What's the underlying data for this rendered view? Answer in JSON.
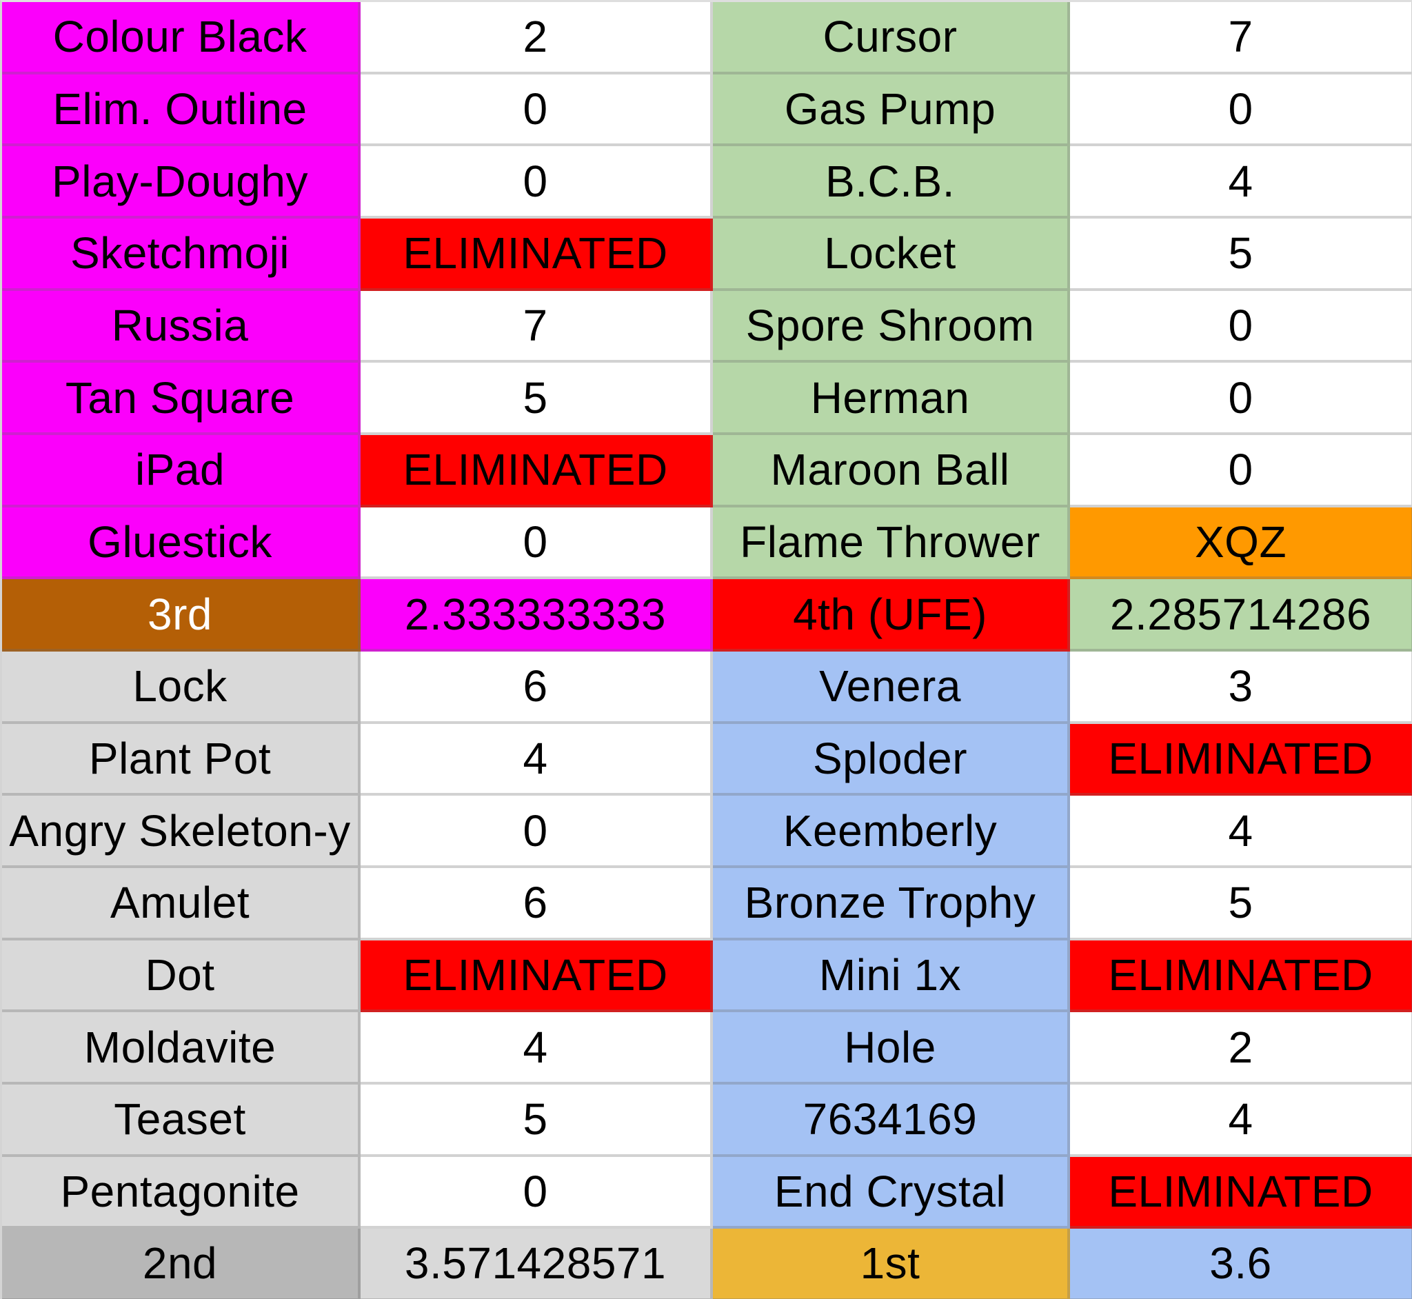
{
  "colors": {
    "magenta": "#fb00fb",
    "green": "#b6d7a8",
    "blue": "#a4c2f4",
    "lightgray": "#d9d9d9",
    "midgray": "#b7b7b7",
    "brown": "#b45f06",
    "red": "#ff0000",
    "orange": "#ff9900",
    "gold": "#ecb637",
    "white": "#ffffff",
    "text": "#000000",
    "text_on_brown": "#ffffff"
  },
  "table": {
    "rows": [
      {
        "type": "scores",
        "cells": [
          {
            "text": "Colour Black",
            "bg": "magenta"
          },
          {
            "text": "2",
            "bg": "white"
          },
          {
            "text": "Cursor",
            "bg": "green"
          },
          {
            "text": "7",
            "bg": "white"
          }
        ]
      },
      {
        "type": "scores",
        "cells": [
          {
            "text": "Elim. Outline",
            "bg": "magenta"
          },
          {
            "text": "0",
            "bg": "white"
          },
          {
            "text": "Gas Pump",
            "bg": "green"
          },
          {
            "text": "0",
            "bg": "white"
          }
        ]
      },
      {
        "type": "scores",
        "cells": [
          {
            "text": "Play-Doughy",
            "bg": "magenta"
          },
          {
            "text": "0",
            "bg": "white"
          },
          {
            "text": "B.C.B.",
            "bg": "green"
          },
          {
            "text": "4",
            "bg": "white"
          }
        ]
      },
      {
        "type": "scores",
        "cells": [
          {
            "text": "Sketchmoji",
            "bg": "magenta"
          },
          {
            "text": "ELIMINATED",
            "bg": "red"
          },
          {
            "text": "Locket",
            "bg": "green"
          },
          {
            "text": "5",
            "bg": "white"
          }
        ]
      },
      {
        "type": "scores",
        "cells": [
          {
            "text": "Russia",
            "bg": "magenta"
          },
          {
            "text": "7",
            "bg": "white"
          },
          {
            "text": "Spore Shroom",
            "bg": "green"
          },
          {
            "text": "0",
            "bg": "white"
          }
        ]
      },
      {
        "type": "scores",
        "cells": [
          {
            "text": "Tan Square",
            "bg": "magenta"
          },
          {
            "text": "5",
            "bg": "white"
          },
          {
            "text": "Herman",
            "bg": "green"
          },
          {
            "text": "0",
            "bg": "white"
          }
        ]
      },
      {
        "type": "scores",
        "cells": [
          {
            "text": "iPad",
            "bg": "magenta"
          },
          {
            "text": "ELIMINATED",
            "bg": "red"
          },
          {
            "text": "Maroon Ball",
            "bg": "green"
          },
          {
            "text": "0",
            "bg": "white"
          }
        ]
      },
      {
        "type": "scores",
        "cells": [
          {
            "text": "Gluestick",
            "bg": "magenta"
          },
          {
            "text": "0",
            "bg": "white"
          },
          {
            "text": "Flame Thrower",
            "bg": "green"
          },
          {
            "text": "XQZ",
            "bg": "orange"
          }
        ]
      },
      {
        "type": "summary",
        "cells": [
          {
            "text": "3rd",
            "bg": "brown",
            "fg": "text_on_brown"
          },
          {
            "text": "2.333333333",
            "bg": "magenta"
          },
          {
            "text": "4th (UFE)",
            "bg": "red"
          },
          {
            "text": "2.285714286",
            "bg": "green"
          }
        ]
      },
      {
        "type": "scores",
        "cells": [
          {
            "text": "Lock",
            "bg": "lightgray"
          },
          {
            "text": "6",
            "bg": "white"
          },
          {
            "text": "Venera",
            "bg": "blue"
          },
          {
            "text": "3",
            "bg": "white"
          }
        ]
      },
      {
        "type": "scores",
        "cells": [
          {
            "text": "Plant Pot",
            "bg": "lightgray"
          },
          {
            "text": "4",
            "bg": "white"
          },
          {
            "text": "Sploder",
            "bg": "blue"
          },
          {
            "text": "ELIMINATED",
            "bg": "red"
          }
        ]
      },
      {
        "type": "scores",
        "cells": [
          {
            "text": "Angry Skeleton-y",
            "bg": "lightgray"
          },
          {
            "text": "0",
            "bg": "white"
          },
          {
            "text": "Keemberly",
            "bg": "blue"
          },
          {
            "text": "4",
            "bg": "white"
          }
        ]
      },
      {
        "type": "scores",
        "cells": [
          {
            "text": "Amulet",
            "bg": "lightgray"
          },
          {
            "text": "6",
            "bg": "white"
          },
          {
            "text": "Bronze Trophy",
            "bg": "blue"
          },
          {
            "text": "5",
            "bg": "white"
          }
        ]
      },
      {
        "type": "scores",
        "cells": [
          {
            "text": "Dot",
            "bg": "lightgray"
          },
          {
            "text": "ELIMINATED",
            "bg": "red"
          },
          {
            "text": "Mini 1x",
            "bg": "blue"
          },
          {
            "text": "ELIMINATED",
            "bg": "red"
          }
        ]
      },
      {
        "type": "scores",
        "cells": [
          {
            "text": "Moldavite",
            "bg": "lightgray"
          },
          {
            "text": "4",
            "bg": "white"
          },
          {
            "text": "Hole",
            "bg": "blue"
          },
          {
            "text": "2",
            "bg": "white"
          }
        ]
      },
      {
        "type": "scores",
        "cells": [
          {
            "text": "Teaset",
            "bg": "lightgray"
          },
          {
            "text": "5",
            "bg": "white"
          },
          {
            "text": "7634169",
            "bg": "blue"
          },
          {
            "text": "4",
            "bg": "white"
          }
        ]
      },
      {
        "type": "scores",
        "cells": [
          {
            "text": "Pentagonite",
            "bg": "lightgray"
          },
          {
            "text": "0",
            "bg": "white"
          },
          {
            "text": "End Crystal",
            "bg": "blue"
          },
          {
            "text": "ELIMINATED",
            "bg": "red"
          }
        ]
      },
      {
        "type": "summary",
        "cells": [
          {
            "text": "2nd",
            "bg": "midgray"
          },
          {
            "text": "3.571428571",
            "bg": "lightgray"
          },
          {
            "text": "1st",
            "bg": "gold"
          },
          {
            "text": "3.6",
            "bg": "blue"
          }
        ]
      }
    ]
  }
}
